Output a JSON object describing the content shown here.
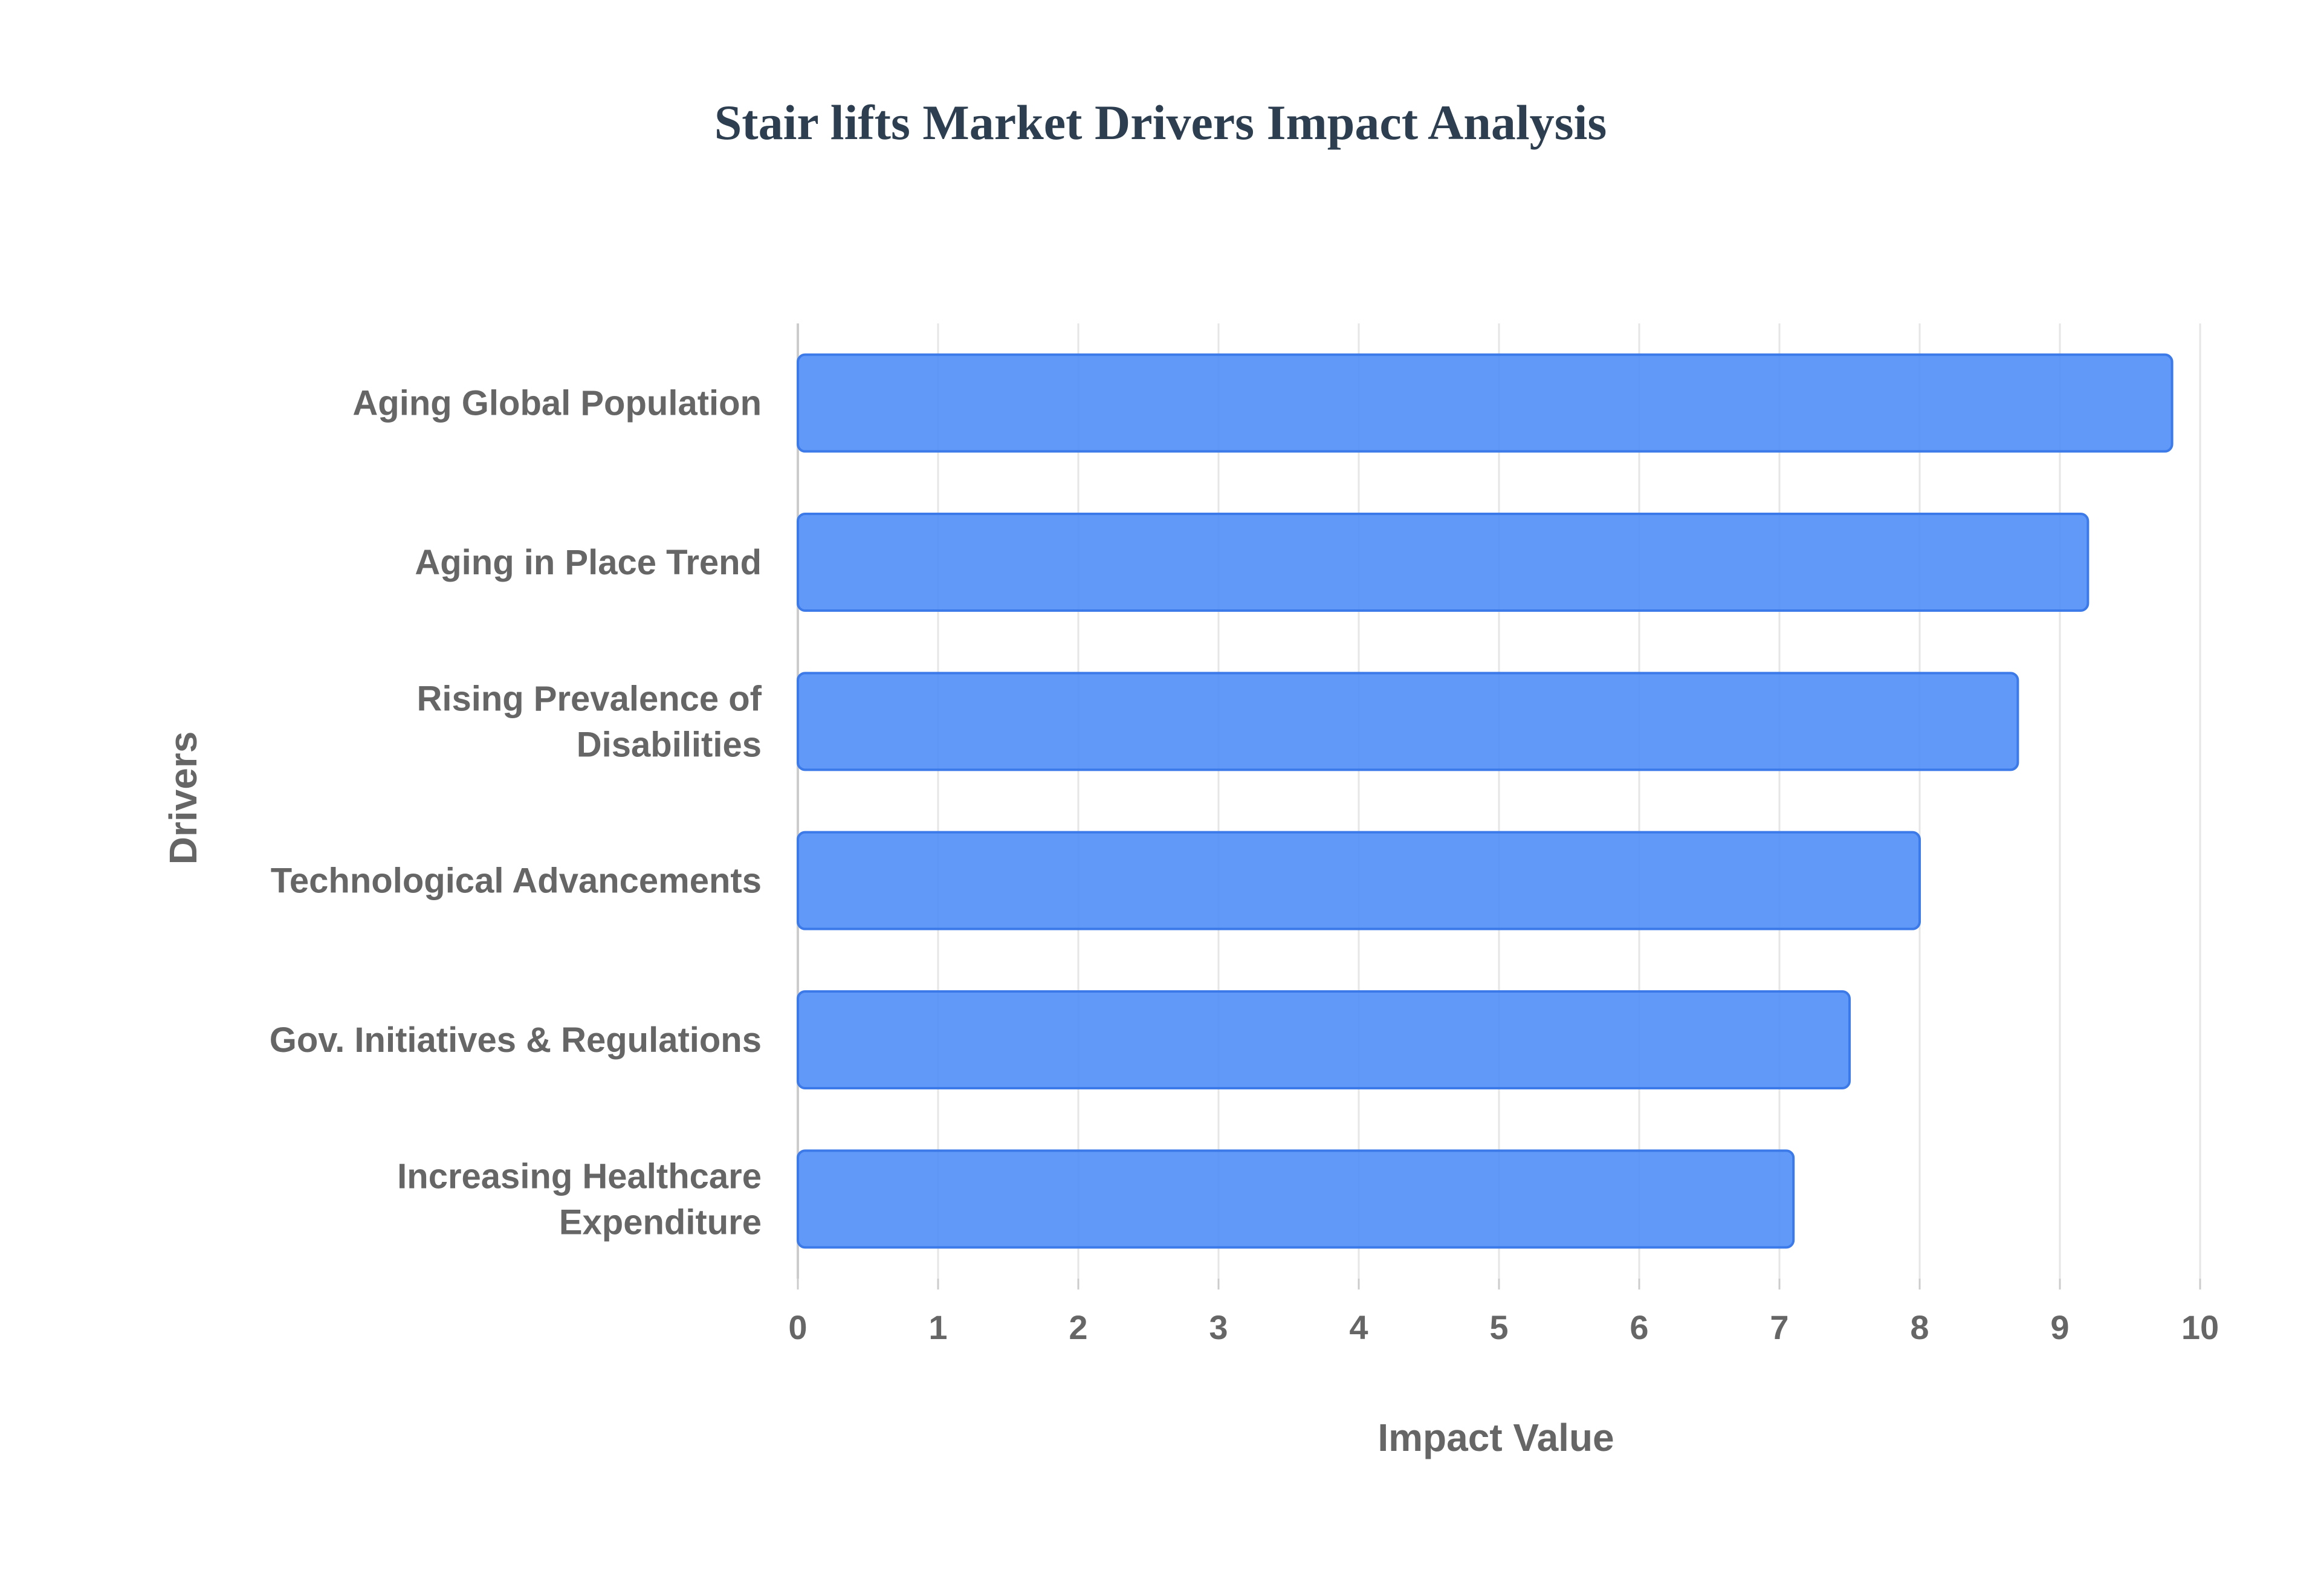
{
  "chart_data": {
    "type": "bar",
    "orientation": "horizontal",
    "title": "Stair lifts Market Drivers Impact Analysis",
    "xlabel": "Impact Value",
    "ylabel": "Drivers",
    "categories": [
      [
        "Aging Global Population"
      ],
      [
        "Aging in Place Trend"
      ],
      [
        "Rising Prevalence of",
        "Disabilities"
      ],
      [
        "Technological Advancements"
      ],
      [
        "Gov. Initiatives & Regulations"
      ],
      [
        "Increasing Healthcare",
        "Expenditure"
      ]
    ],
    "values": [
      9.8,
      9.2,
      8.7,
      8.0,
      7.5,
      7.1
    ],
    "xlim": [
      0,
      10
    ],
    "xticks": [
      0,
      1,
      2,
      3,
      4,
      5,
      6,
      7,
      8,
      9,
      10
    ],
    "grid": true,
    "colors": {
      "bar_fill": "#4f8ef7",
      "bar_stroke": "#3b7ae8",
      "title": "#2c3e50",
      "text": "#666666",
      "grid": "#e6e6e6",
      "axis": "#cccccc"
    }
  }
}
